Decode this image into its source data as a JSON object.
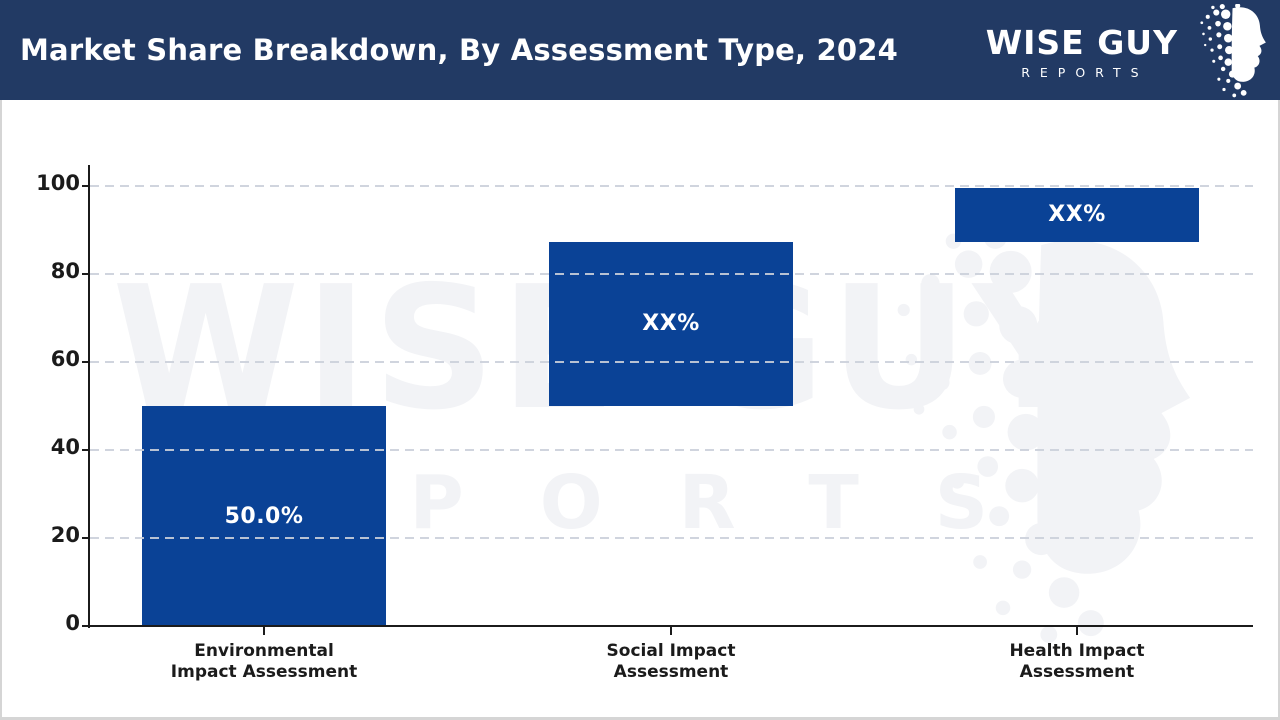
{
  "header": {
    "title": "Market Share Breakdown, By Assessment Type, 2024",
    "logo": {
      "line1": "WISE GUY",
      "line2": "REPORTS"
    }
  },
  "watermark": {
    "line1": "WISE GUY",
    "line2": "REPORTS"
  },
  "chart_data": {
    "type": "bar",
    "subtype": "floating_segment_bars",
    "title": "Market Share Breakdown, By Assessment Type, 2024",
    "xlabel": "",
    "ylabel": "",
    "ylim": [
      0,
      105
    ],
    "yticks": [
      0,
      20,
      40,
      60,
      80,
      100
    ],
    "grid": "horizontal-dashed",
    "legend": "none",
    "categories": [
      {
        "line1": "Environmental",
        "line2": "Impact Assessment"
      },
      {
        "line1": "Social Impact",
        "line2": "Assessment"
      },
      {
        "line1": "Health Impact",
        "line2": "Assessment"
      }
    ],
    "segments": [
      {
        "category": "Environmental Impact Assessment",
        "start": 0,
        "end": 50,
        "label": "50.0%"
      },
      {
        "category": "Social Impact Assessment",
        "start": 50,
        "end": 87.3,
        "label": "XX%"
      },
      {
        "category": "Health Impact Assessment",
        "start": 87.3,
        "end": 99.6,
        "label": "XX%"
      }
    ]
  },
  "colors": {
    "header_bg": "#223A64",
    "bar": "#0A4296",
    "bar_label": "#FFFFFF",
    "axis": "#1B1B1B",
    "grid": "#CDD2DB",
    "watermark": "#F2F3F6",
    "page_border": "#D5D5D5"
  }
}
